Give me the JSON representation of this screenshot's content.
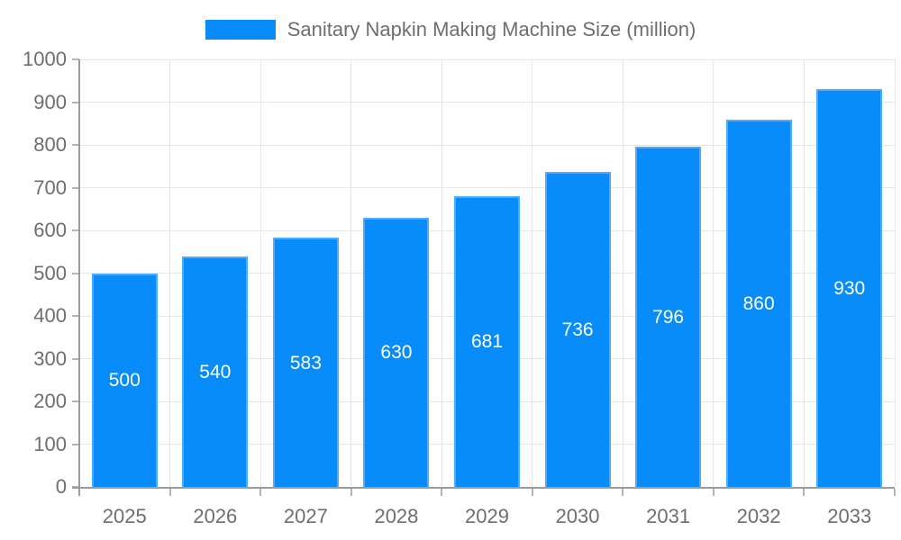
{
  "legend": {
    "label": "Sanitary Napkin Making Machine Size (million)"
  },
  "chart_data": {
    "type": "bar",
    "title": "",
    "categories": [
      "2025",
      "2026",
      "2027",
      "2028",
      "2029",
      "2030",
      "2031",
      "2032",
      "2033"
    ],
    "series": [
      {
        "name": "Sanitary Napkin Making Machine Size (million)",
        "values": [
          500,
          540,
          583,
          630,
          681,
          736,
          796,
          860,
          930
        ]
      }
    ],
    "xlabel": "",
    "ylabel": "",
    "ylim": [
      0,
      1000
    ],
    "ytick_step": 100,
    "grid": true,
    "legend_position": "top-center",
    "value_labels": "inside-center",
    "colors": {
      "bar_fill": "#088cfa",
      "bar_border": "#4fabfb",
      "gridline": "#e6e6e6",
      "axis_line": "#9b9b9b",
      "tick_mark": "#b4b4b4",
      "axis_text": "#6e6e6e",
      "value_text": "#ffffff",
      "background": "#ffffff"
    }
  }
}
